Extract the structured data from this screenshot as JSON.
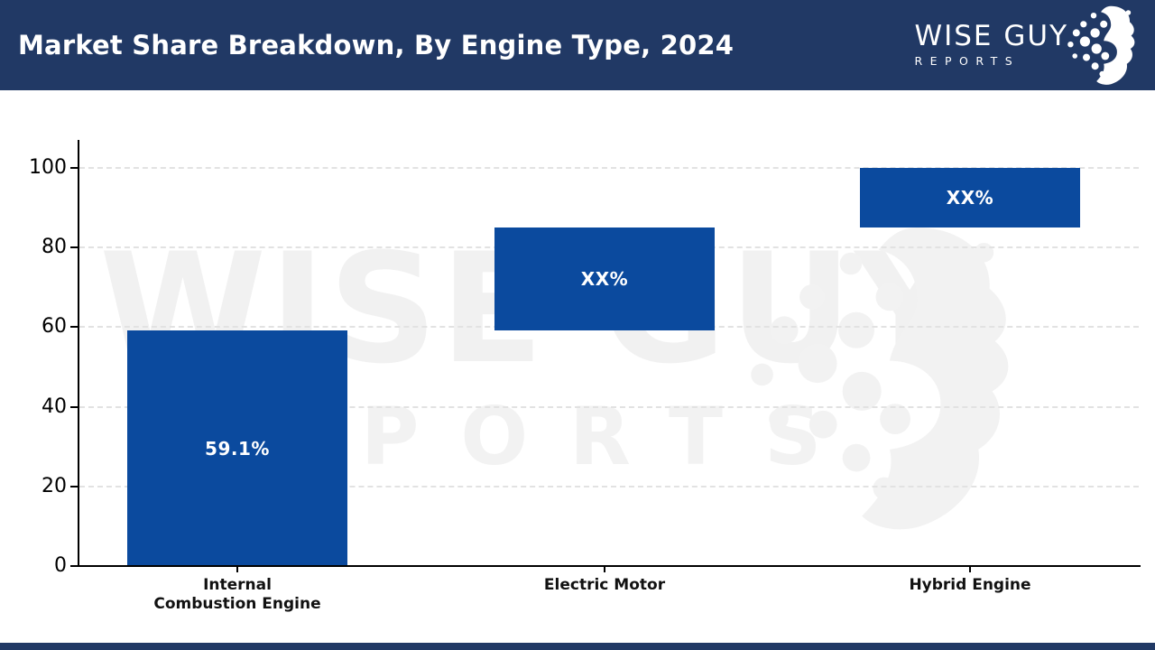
{
  "header": {
    "title": "Market Share Breakdown, By Engine Type, 2024",
    "logo": {
      "brand_line1": "WISE GUY",
      "brand_line2": "REPORTS"
    }
  },
  "watermark": {
    "line1": "WISE GUY",
    "line2": "REPORTS"
  },
  "chart_data": {
    "type": "bar",
    "subtype": "floating-waterfall",
    "title": "Market Share Breakdown, By Engine Type, 2024",
    "categories": [
      "Internal\nCombustion Engine",
      "Electric Motor",
      "Hybrid Engine"
    ],
    "series": [
      {
        "name": "Market share (%)",
        "segments": [
          {
            "category": "Internal Combustion Engine",
            "base": 0,
            "top": 59.1,
            "label": "59.1%"
          },
          {
            "category": "Electric Motor",
            "base": 59.1,
            "top": 85,
            "label": "XX%"
          },
          {
            "category": "Hybrid Engine",
            "base": 85,
            "top": 100,
            "label": "XX%"
          }
        ]
      }
    ],
    "xlabel": "",
    "ylabel": "",
    "yticks": [
      0,
      20,
      40,
      60,
      80,
      100
    ],
    "ylim": [
      0,
      107
    ],
    "grid": "horizontal-dashed",
    "legend": "none",
    "colors": {
      "bar": "#0b4a9e",
      "header_bg": "#213965",
      "gridline": "#e2e2e2",
      "axis": "#000000",
      "bar_label_text": "#ffffff",
      "watermark": "#f2f2f2"
    }
  }
}
